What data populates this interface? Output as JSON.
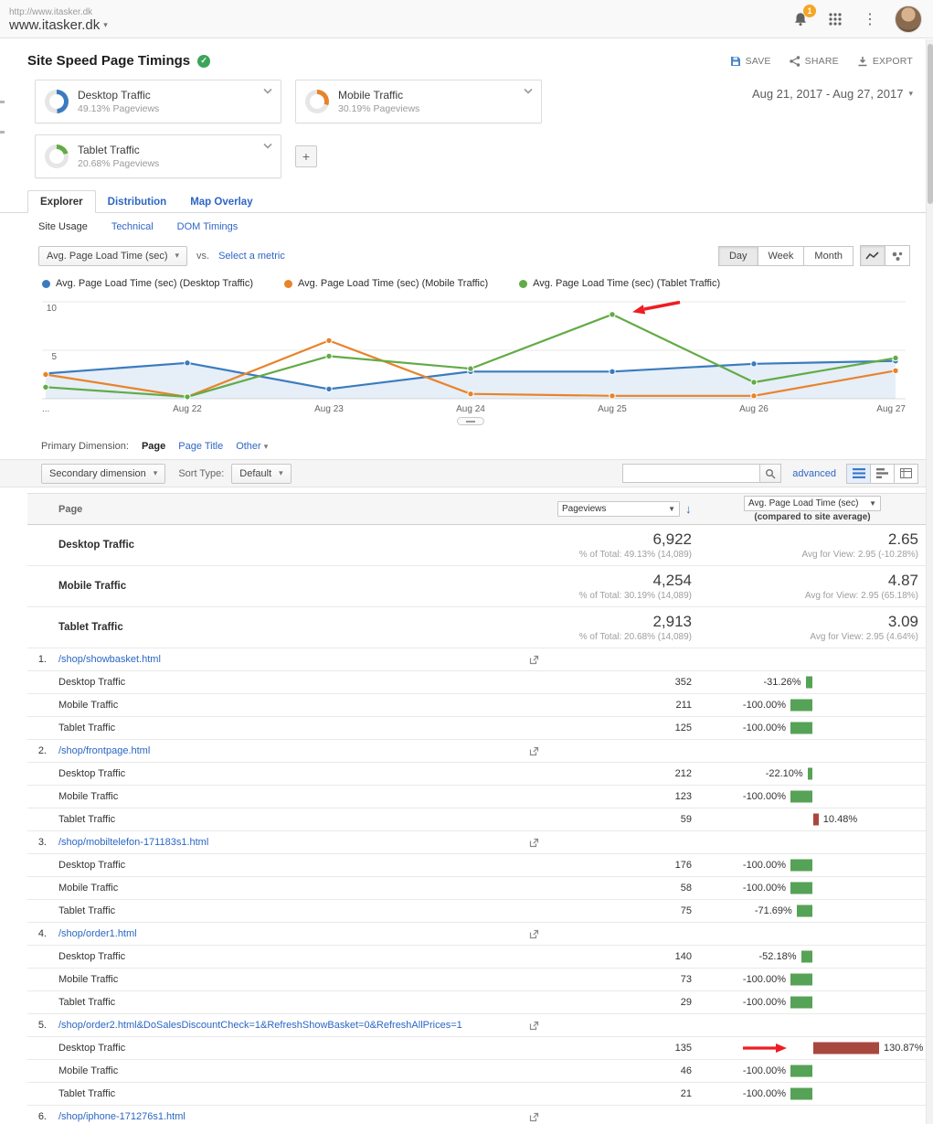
{
  "topbar": {
    "url": "http://www.itasker.dk",
    "site_name": "www.itasker.dk",
    "notification_count": "1"
  },
  "header": {
    "title": "Site Speed Page Timings",
    "save_label": "SAVE",
    "share_label": "SHARE",
    "export_label": "EXPORT",
    "date_range": "Aug 21, 2017 - Aug 27, 2017"
  },
  "segments": [
    {
      "name": "Desktop Traffic",
      "detail": "49.13% Pageviews",
      "pct": 49.13,
      "color": "#3a7bbf"
    },
    {
      "name": "Mobile Traffic",
      "detail": "30.19% Pageviews",
      "pct": 30.19,
      "color": "#e8832a"
    },
    {
      "name": "Tablet Traffic",
      "detail": "20.68% Pageviews",
      "pct": 20.68,
      "color": "#62ab46"
    }
  ],
  "add_segment_label": "+",
  "tabs": {
    "explorer": "Explorer",
    "distribution": "Distribution",
    "map_overlay": "Map Overlay"
  },
  "subtabs": {
    "site_usage": "Site Usage",
    "technical": "Technical",
    "dom_timings": "DOM Timings"
  },
  "metric_bar": {
    "metric": "Avg. Page Load Time (sec)",
    "vs": "vs.",
    "select_metric": "Select a metric",
    "day": "Day",
    "week": "Week",
    "month": "Month"
  },
  "chart_data": {
    "type": "line",
    "x": [
      "...",
      "Aug 22",
      "Aug 23",
      "Aug 24",
      "Aug 25",
      "Aug 26",
      "Aug 27"
    ],
    "ylim": [
      0,
      10
    ],
    "yticks": [
      5,
      10
    ],
    "grid": "horizontal",
    "legend_position": "top",
    "series": [
      {
        "name": "Avg. Page Load Time (sec) (Desktop Traffic)",
        "color": "#3a7bbf",
        "area": true,
        "values": [
          2.6,
          3.7,
          1.0,
          2.8,
          2.8,
          3.6,
          3.9
        ]
      },
      {
        "name": "Avg. Page Load Time (sec) (Mobile Traffic)",
        "color": "#e8832a",
        "values": [
          2.5,
          0.2,
          6.0,
          0.5,
          0.3,
          0.3,
          2.9
        ]
      },
      {
        "name": "Avg. Page Load Time (sec) (Tablet Traffic)",
        "color": "#62ab46",
        "values": [
          1.2,
          0.2,
          4.4,
          3.1,
          8.7,
          1.7,
          4.2
        ]
      }
    ],
    "annotation": "red arrow pointing at Tablet Traffic peak on Aug 25"
  },
  "primary_dimension": {
    "label": "Primary Dimension:",
    "page": "Page",
    "page_title": "Page Title",
    "other": "Other"
  },
  "toolbar": {
    "secondary_dimension": "Secondary dimension",
    "sort_type_label": "Sort Type:",
    "sort_type_value": "Default",
    "search_value": "",
    "advanced": "advanced"
  },
  "table": {
    "header": {
      "page": "Page",
      "pageviews": "Pageviews",
      "avg_metric": "Avg. Page Load Time (sec)",
      "avg_note": "(compared to site average)"
    },
    "summary": [
      {
        "name": "Desktop Traffic",
        "pageviews": "6,922",
        "pageviews_sub": "% of Total: 49.13% (14,089)",
        "avg": "2.65",
        "avg_sub": "Avg for View: 2.95 (-10.28%)"
      },
      {
        "name": "Mobile Traffic",
        "pageviews": "4,254",
        "pageviews_sub": "% of Total: 30.19% (14,089)",
        "avg": "4.87",
        "avg_sub": "Avg for View: 2.95 (65.18%)"
      },
      {
        "name": "Tablet Traffic",
        "pageviews": "2,913",
        "pageviews_sub": "% of Total: 20.68% (14,089)",
        "avg": "3.09",
        "avg_sub": "Avg for View: 2.95 (4.64%)"
      }
    ],
    "rows": [
      {
        "num": "1.",
        "page": "/shop/showbasket.html",
        "entries": [
          {
            "name": "Desktop Traffic",
            "pageviews": "352",
            "pct": -31.26,
            "pct_label": "-31.26%"
          },
          {
            "name": "Mobile Traffic",
            "pageviews": "211",
            "pct": -100.0,
            "pct_label": "-100.00%"
          },
          {
            "name": "Tablet Traffic",
            "pageviews": "125",
            "pct": -100.0,
            "pct_label": "-100.00%"
          }
        ]
      },
      {
        "num": "2.",
        "page": "/shop/frontpage.html",
        "entries": [
          {
            "name": "Desktop Traffic",
            "pageviews": "212",
            "pct": -22.1,
            "pct_label": "-22.10%"
          },
          {
            "name": "Mobile Traffic",
            "pageviews": "123",
            "pct": -100.0,
            "pct_label": "-100.00%"
          },
          {
            "name": "Tablet Traffic",
            "pageviews": "59",
            "pct": 10.48,
            "pct_label": "10.48%"
          }
        ]
      },
      {
        "num": "3.",
        "page": "/shop/mobiltelefon-171183s1.html",
        "entries": [
          {
            "name": "Desktop Traffic",
            "pageviews": "176",
            "pct": -100.0,
            "pct_label": "-100.00%"
          },
          {
            "name": "Mobile Traffic",
            "pageviews": "58",
            "pct": -100.0,
            "pct_label": "-100.00%"
          },
          {
            "name": "Tablet Traffic",
            "pageviews": "75",
            "pct": -71.69,
            "pct_label": "-71.69%"
          }
        ]
      },
      {
        "num": "4.",
        "page": "/shop/order1.html",
        "entries": [
          {
            "name": "Desktop Traffic",
            "pageviews": "140",
            "pct": -52.18,
            "pct_label": "-52.18%"
          },
          {
            "name": "Mobile Traffic",
            "pageviews": "73",
            "pct": -100.0,
            "pct_label": "-100.00%"
          },
          {
            "name": "Tablet Traffic",
            "pageviews": "29",
            "pct": -100.0,
            "pct_label": "-100.00%"
          }
        ]
      },
      {
        "num": "5.",
        "page": "/shop/order2.html&DoSalesDiscountCheck=1&RefreshShowBasket=0&RefreshAllPrices=1",
        "entries": [
          {
            "name": "Desktop Traffic",
            "pageviews": "135",
            "pct": 130.87,
            "pct_label": "130.87%",
            "arrow": true
          },
          {
            "name": "Mobile Traffic",
            "pageviews": "46",
            "pct": -100.0,
            "pct_label": "-100.00%"
          },
          {
            "name": "Tablet Traffic",
            "pageviews": "21",
            "pct": -100.0,
            "pct_label": "-100.00%"
          }
        ]
      },
      {
        "num": "6.",
        "page": "/shop/iphone-171276s1.html",
        "entries": []
      }
    ]
  },
  "colors": {
    "link": "#2f66c4",
    "desktop": "#3a7bbf",
    "mobile": "#e8832a",
    "tablet": "#62ab46",
    "bar_negative": "#56a256",
    "bar_positive": "#a8473d",
    "annotation_red": "#ee1d23"
  }
}
